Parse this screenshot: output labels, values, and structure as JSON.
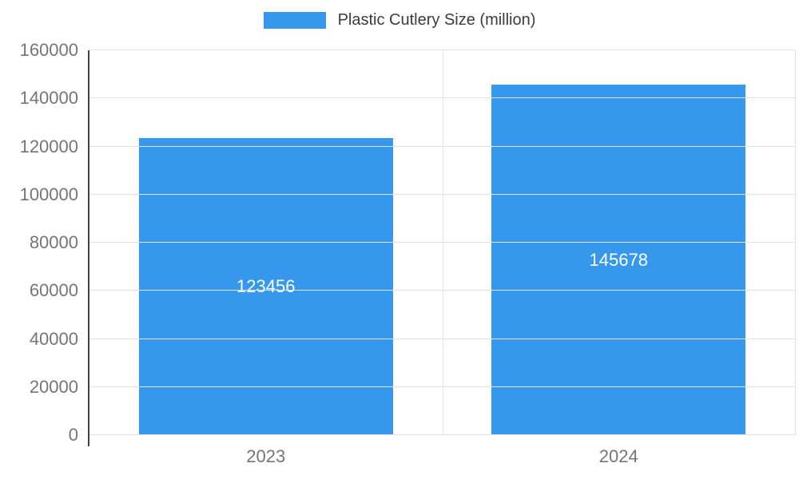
{
  "chart_data": {
    "type": "bar",
    "title": "Plastic Cutlery Size (million)",
    "categories": [
      "2023",
      "2024"
    ],
    "values": [
      123456,
      145678
    ],
    "series": [
      {
        "name": "Plastic Cutlery Size (million)",
        "values": [
          123456,
          145678
        ]
      }
    ],
    "xlabel": "",
    "ylabel": "",
    "ylim": [
      0,
      160000
    ],
    "ytick_step": 20000,
    "grid": true,
    "legend_position": "top-center",
    "bar_color": "#3598EC",
    "bar_label_color": "#FFFFFF",
    "axis_color": "#424242",
    "gridline_color": "#E2E2E2",
    "tick_label_color": "#757575",
    "background_color": "#FFFFFF"
  }
}
